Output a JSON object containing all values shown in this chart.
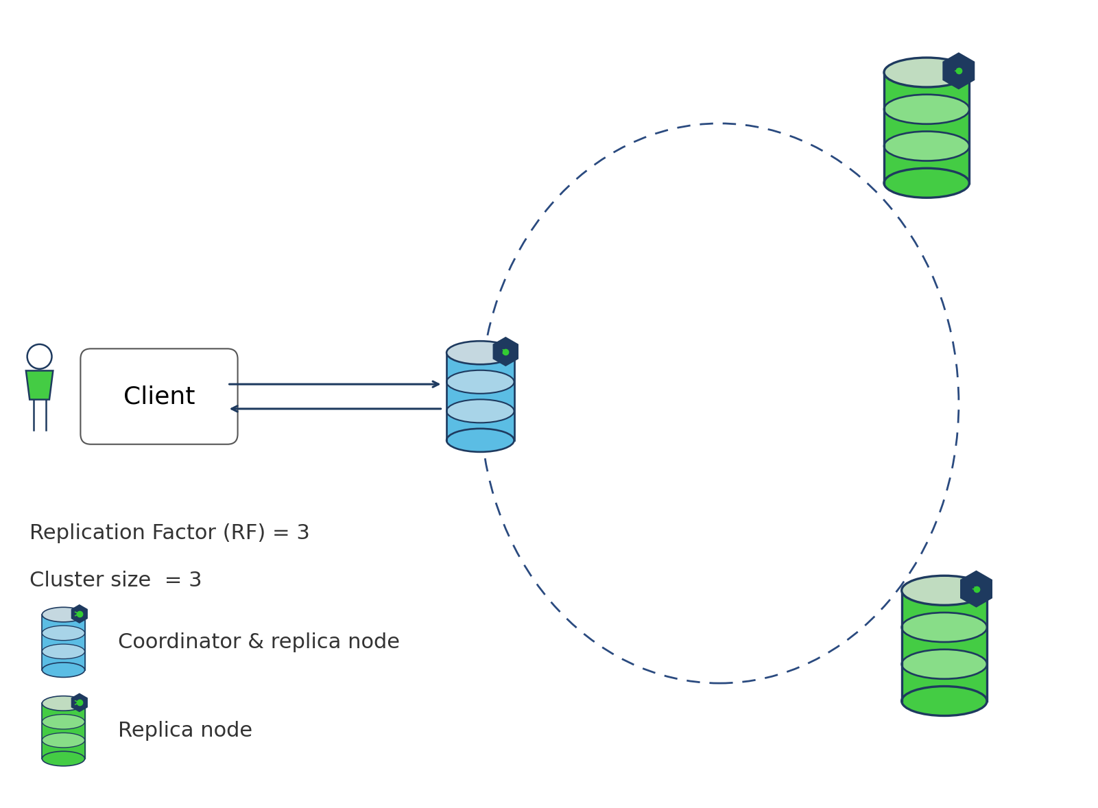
{
  "bg_color": "#ffffff",
  "arrow_color": "#1e3a5f",
  "dashed_circle_color": "#2a4a7f",
  "coord_body_color": "#5bbde4",
  "coord_top_color": "#c5d8e0",
  "coord_stripe_color": "#a8d4e8",
  "replica_body_color": "#44cc44",
  "replica_top_color": "#c0dcc0",
  "replica_stripe_color": "#88dd88",
  "outline_color": "#1e3a5f",
  "badge_color": "#1e3a5f",
  "badge_icon_color": "#33cc33",
  "person_body_color": "#44cc44",
  "person_outline_color": "#1e3a5f",
  "client_box_outline": "#555555",
  "text_color": "#333333",
  "label_text1": "Replication Factor (RF) = 3",
  "label_text2": "Cluster size  = 3",
  "legend_label1": "Coordinator & replica node",
  "legend_label2": "Replica node",
  "fig_w": 16.01,
  "fig_h": 11.78,
  "dpi": 100
}
